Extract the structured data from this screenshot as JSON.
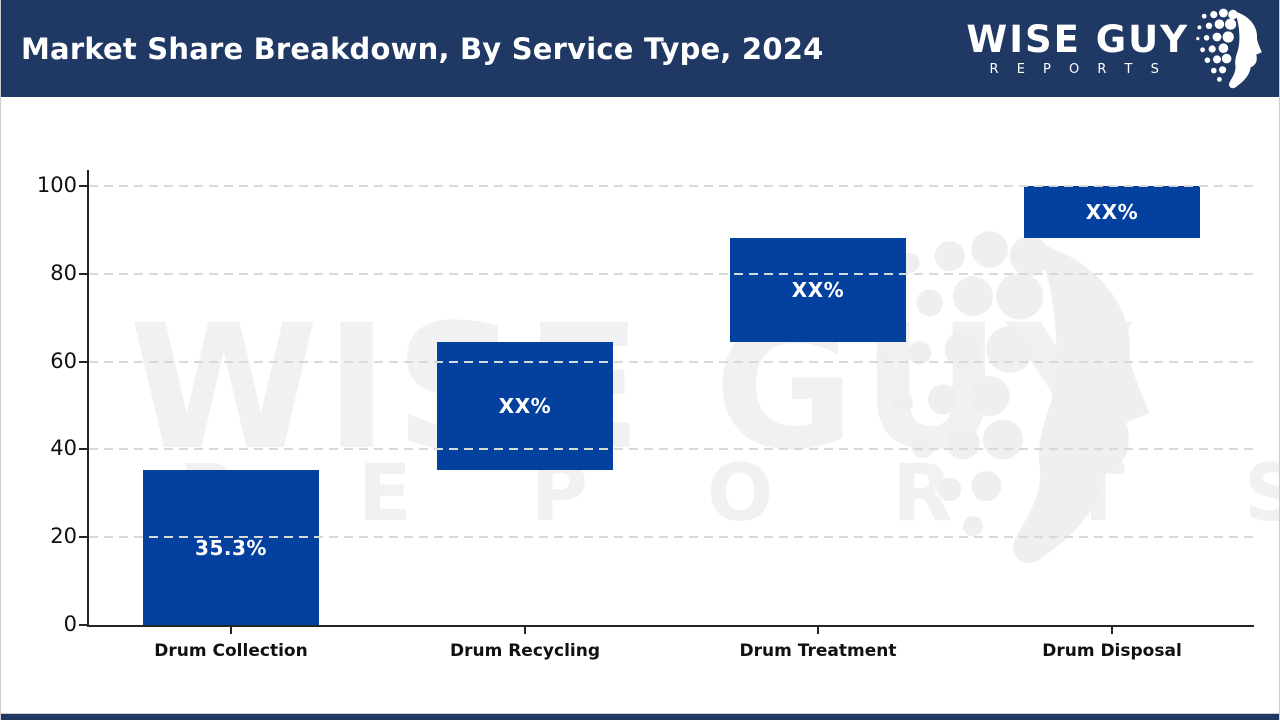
{
  "header": {
    "title": "Market Share Breakdown, By Service Type, 2024",
    "logo_line1": "WISE GUY",
    "logo_line2": "R E P O R T S"
  },
  "watermark": {
    "line1": "WISE GUY",
    "line2": "R E P O R T S"
  },
  "colors": {
    "header_bg": "#1f3864",
    "footer_bg": "#1f3864",
    "bar": "#04419e",
    "grid": "#d9d9d9",
    "axis": "#262626",
    "bar_label": "#ffffff"
  },
  "chart_data": {
    "type": "bar",
    "variant": "waterfall",
    "title": "Market Share Breakdown, By Service Type, 2024",
    "categories": [
      "Drum Collection",
      "Drum Recycling",
      "Drum Treatment",
      "Drum Disposal"
    ],
    "series": [
      {
        "name": "Market share (%)",
        "segments": [
          {
            "category": "Drum Collection",
            "start": 0,
            "end": 35.3,
            "label": "35.3%"
          },
          {
            "category": "Drum Recycling",
            "start": 35.3,
            "end": 64.5,
            "label": "XX%"
          },
          {
            "category": "Drum Treatment",
            "start": 64.5,
            "end": 88.2,
            "label": "XX%"
          },
          {
            "category": "Drum Disposal",
            "start": 88.2,
            "end": 100,
            "label": "XX%"
          }
        ]
      }
    ],
    "xlabel": "",
    "ylabel": "",
    "yticks": [
      0,
      20,
      40,
      60,
      80,
      100
    ],
    "ylim": [
      0,
      103.6
    ],
    "grid": "horizontal-dashed",
    "legend": "none"
  }
}
